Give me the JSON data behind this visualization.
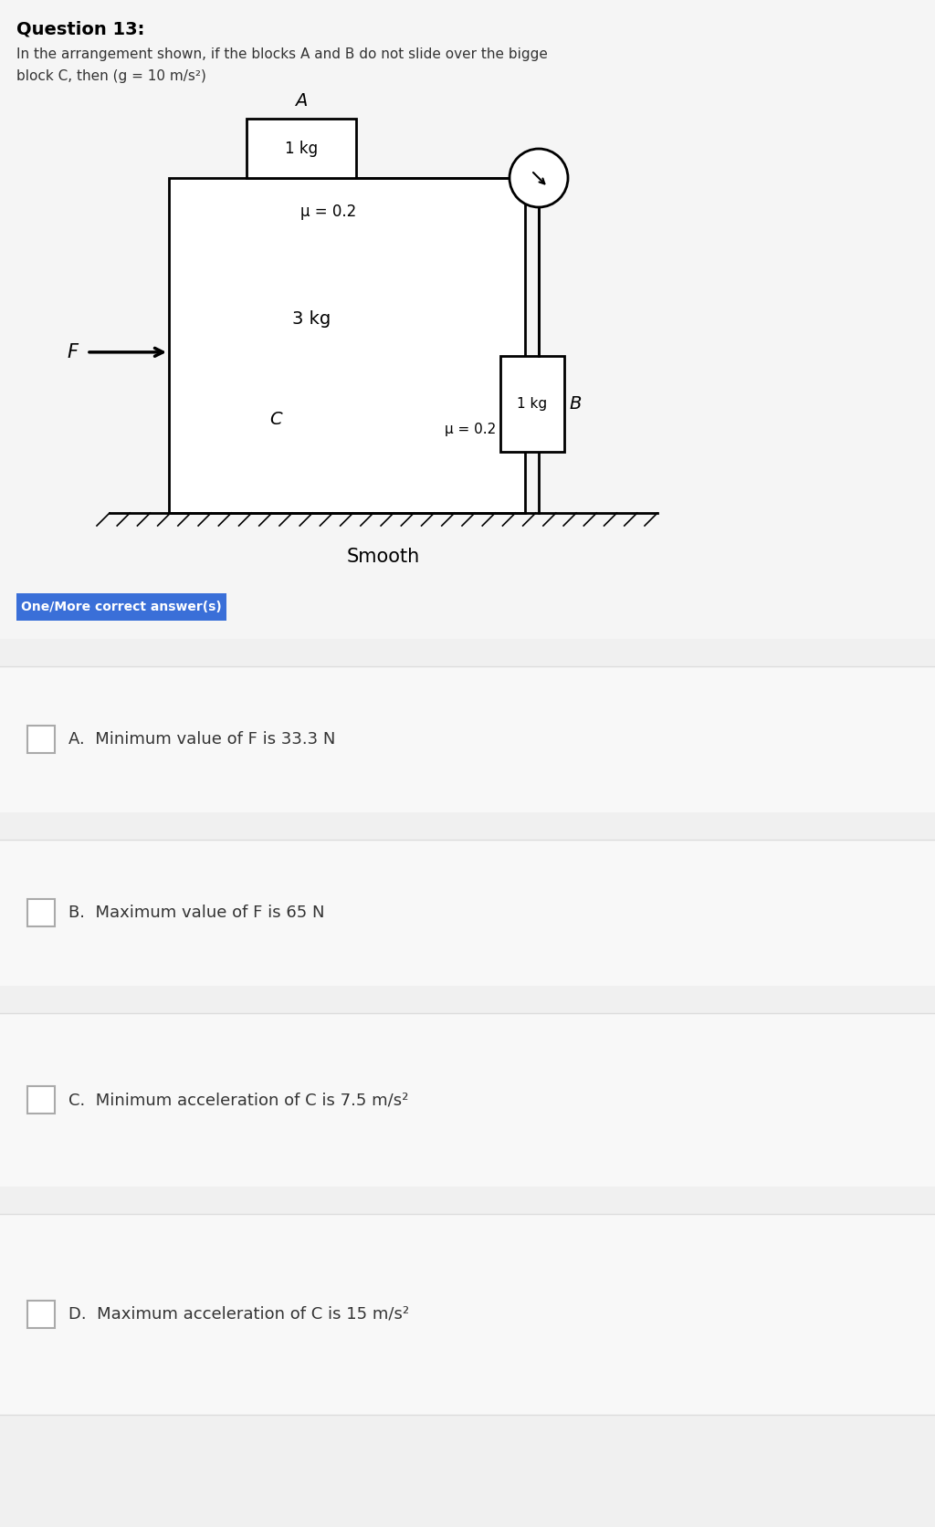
{
  "title": "Question 13:",
  "question_line1": "In the arrangement shown, if the blocks A and B do not slide over the bigge",
  "question_line2": "block C, then (g = 10 m/s²)",
  "badge_text": "One/More correct answer(s)",
  "badge_color": "#3a6fd8",
  "options": [
    "A.  Minimum value of F is 33.3 N",
    "B.  Maximum value of F is 65 N",
    "C.  Minimum acceleration of C is 7.5 m/s²",
    "D.  Maximum acceleration of C is 15 m/s²"
  ],
  "bg_color": "#e0e0e0",
  "panel_color": "#f0f0f0"
}
